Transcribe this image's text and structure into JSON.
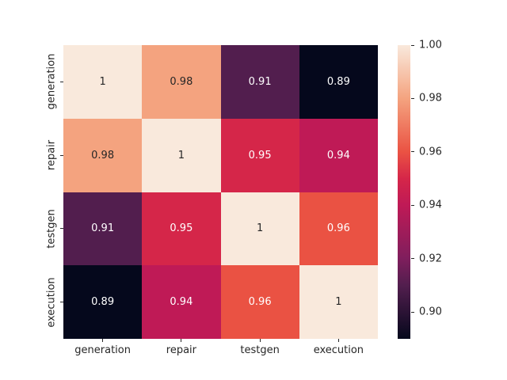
{
  "chart_data": {
    "type": "heatmap",
    "title": "",
    "xlabel": "",
    "ylabel": "",
    "categories": [
      "generation",
      "repair",
      "testgen",
      "execution"
    ],
    "matrix": [
      [
        1,
        0.98,
        0.91,
        0.89
      ],
      [
        0.98,
        1,
        0.95,
        0.94
      ],
      [
        0.91,
        0.95,
        1,
        0.96
      ],
      [
        0.89,
        0.94,
        0.96,
        1
      ]
    ],
    "annotations": true,
    "grid": false,
    "legend_position": "right-colorbar",
    "value_styles": {
      "1": {
        "bg": "#f9e9dc",
        "fg": "#262626"
      },
      "0.98": {
        "bg": "#f4a37f",
        "fg": "#262626"
      },
      "0.96": {
        "bg": "#ea5243",
        "fg": "#ffffff"
      },
      "0.95": {
        "bg": "#d52649",
        "fg": "#ffffff"
      },
      "0.94": {
        "bg": "#bf1a56",
        "fg": "#ffffff"
      },
      "0.91": {
        "bg": "#521e4e",
        "fg": "#ffffff"
      },
      "0.89": {
        "bg": "#05081c",
        "fg": "#ffffff"
      }
    },
    "colorbar": {
      "min": 0.89,
      "max": 1.0,
      "tick_values": [
        1.0,
        0.98,
        0.96,
        0.94,
        0.92,
        0.9
      ],
      "tick_labels": [
        "1.00",
        "0.98",
        "0.96",
        "0.94",
        "0.92",
        "0.90"
      ],
      "gradient_stops": [
        {
          "pos": 0.0,
          "color": "#f9e9dc"
        },
        {
          "pos": 0.182,
          "color": "#f4a37f"
        },
        {
          "pos": 0.364,
          "color": "#ea5243"
        },
        {
          "pos": 0.455,
          "color": "#d52649"
        },
        {
          "pos": 0.545,
          "color": "#bf1a56"
        },
        {
          "pos": 0.727,
          "color": "#7f1e5d"
        },
        {
          "pos": 0.818,
          "color": "#521e4e"
        },
        {
          "pos": 1.0,
          "color": "#05081c"
        }
      ]
    }
  }
}
